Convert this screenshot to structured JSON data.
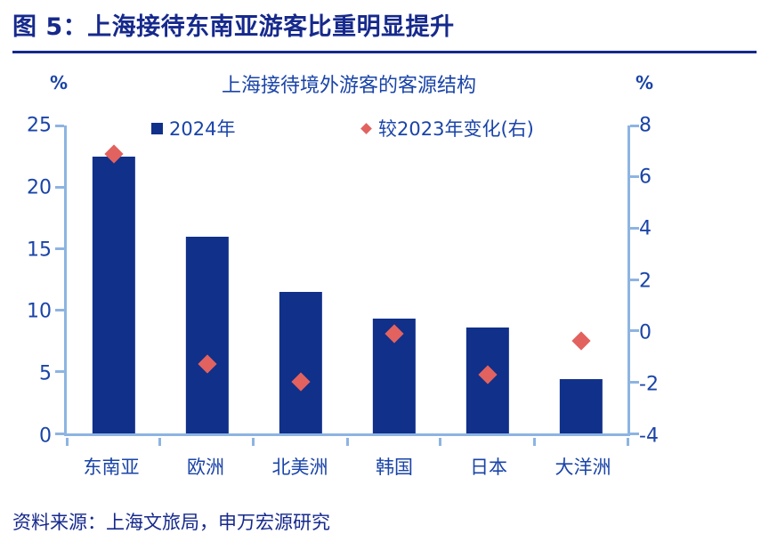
{
  "figure": {
    "title": "图 5：上海接待东南亚游客比重明显提升",
    "source": "资料来源：上海文旅局，申万宏源研究"
  },
  "chart_data": {
    "type": "bar",
    "title": "上海接待境外游客的客源结构",
    "categories": [
      "东南亚",
      "欧洲",
      "北美洲",
      "韩国",
      "日本",
      "大洋洲"
    ],
    "series": [
      {
        "name": "2024年",
        "type": "bar",
        "axis": "left",
        "values": [
          22.5,
          16.0,
          11.5,
          9.3,
          8.6,
          4.4
        ]
      },
      {
        "name": "较2023年变化(右)",
        "type": "scatter-diamond",
        "axis": "right",
        "values": [
          6.9,
          -1.3,
          -2.0,
          -0.1,
          -1.7,
          -0.4
        ]
      }
    ],
    "left_axis": {
      "unit": "%",
      "min": 0,
      "max": 25,
      "ticks": [
        0,
        5,
        10,
        15,
        20,
        25
      ]
    },
    "right_axis": {
      "unit": "%",
      "min": -4,
      "max": 8,
      "ticks": [
        -4,
        -2,
        0,
        2,
        4,
        6,
        8
      ]
    },
    "grid": false,
    "legend_position": "top"
  },
  "colors": {
    "bar": "#10308A",
    "diamond": "#E2625F",
    "axis_line": "#8DB4E2",
    "chart_text": "#1A44A8",
    "header_navy": "#16298C"
  }
}
